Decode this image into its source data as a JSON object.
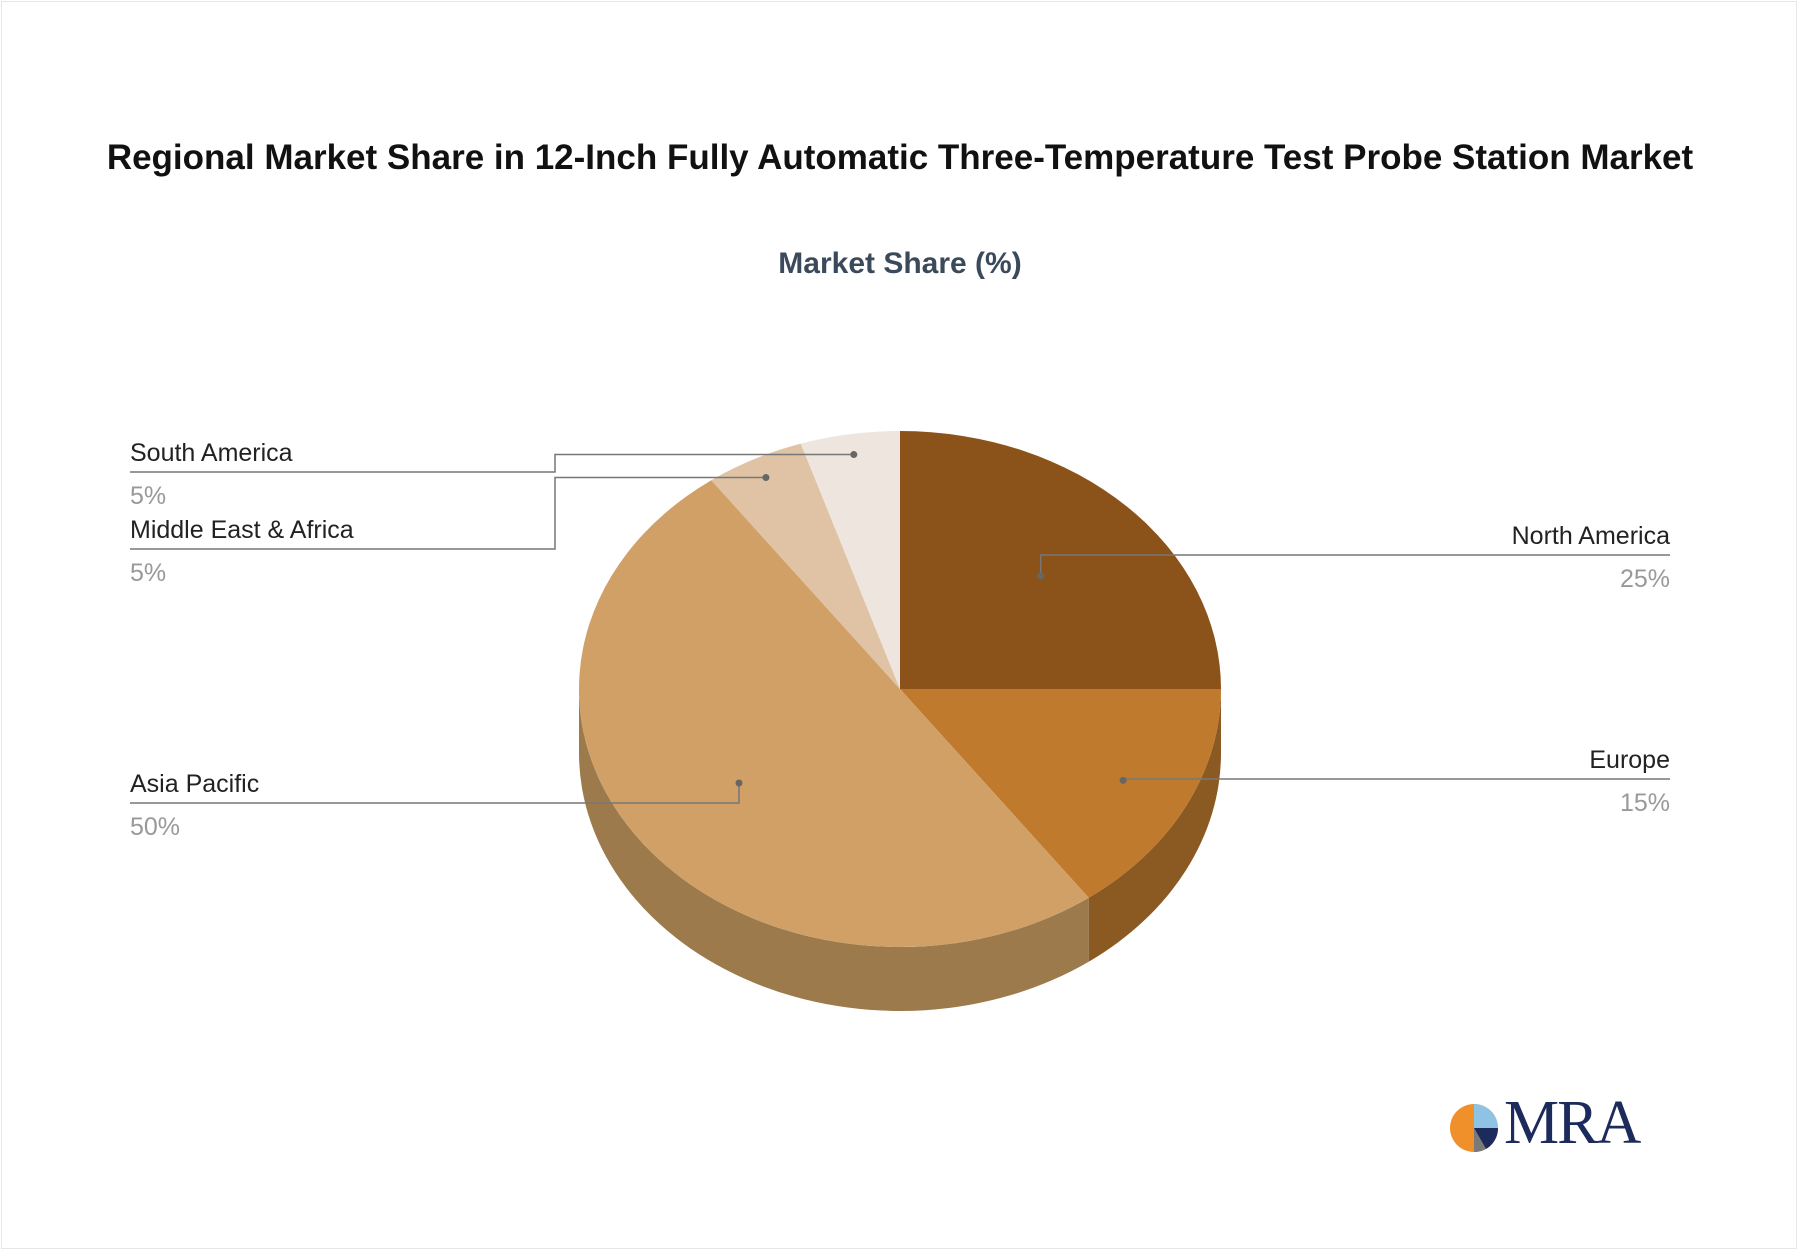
{
  "chart_data": {
    "type": "pie",
    "title": "Regional Market Share in 12-Inch Fully Automatic Three-Temperature Test Probe Station Market",
    "subtitle": "Market Share (%)",
    "slices": [
      {
        "label": "North America",
        "value": 25,
        "value_label": "25%",
        "color": "#8b5319",
        "side_color": "#8b5319"
      },
      {
        "label": "Europe",
        "value": 15,
        "value_label": "15%",
        "color": "#bf7a2e",
        "side_color": "#8b5a22"
      },
      {
        "label": "Asia Pacific",
        "value": 50,
        "value_label": "50%",
        "color": "#d1a066",
        "side_color": "#9c7a4c"
      },
      {
        "label": "Middle East & Africa",
        "value": 5,
        "value_label": "5%",
        "color": "#dfc3a4",
        "side_color": "#a08060"
      },
      {
        "label": "South America",
        "value": 5,
        "value_label": "5%",
        "color": "#efe5df",
        "side_color": "#b0a090"
      }
    ],
    "label_color": "#222222",
    "value_color": "#999999",
    "leader_color": "#777777"
  },
  "logo": {
    "text": "MRA",
    "colors": [
      "#f0902a",
      "#1d2b5c",
      "#8fc3e6",
      "#7a7a7a"
    ]
  }
}
